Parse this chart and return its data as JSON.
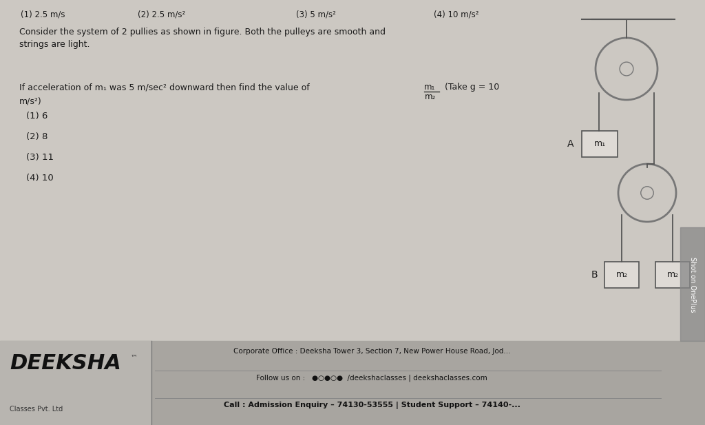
{
  "bg_color": "#ccc8c2",
  "text_color": "#1a1a1a",
  "problem_text_line1": "Consider the system of 2 pullies as shown in figure. Both the pulleys are smooth and",
  "problem_text_line2": "strings are light.",
  "question_text": "If acceleration of m₁ was 5 m/sec² downward then find the value of",
  "frac_num": "m₁",
  "frac_den": "m₂",
  "take_g_text": "(Take g = 10",
  "unit_text": "m/s²)",
  "options": [
    "(1) 6",
    "(2) 8",
    "(3) 11",
    "(4) 10"
  ],
  "label_A": "A",
  "label_B": "B",
  "label_m1": "m₁",
  "label_m2": "m₂",
  "label_m3": "m₂",
  "pulley_color": "#777777",
  "string_color": "#555555",
  "box_edge_color": "#555555",
  "box_face_color": "#dedad5",
  "footer_bg": "#a8a5a0",
  "footer_left_bg": "#b8b5b0",
  "footer_office": "Corporate Office : Deeksha Tower 3, Section 7, New Power House Road, Jod...",
  "footer_follow": "Follow us on :   ●○●○●  /deekshaclasses | deekshaclasses.com",
  "footer_call": "Call : Admission Enquiry – 74130-53555 | Student Support – 74140-...",
  "deeksha_text": "DEEKSHA",
  "deeksha_sub": "Classes Pvt. Ltd",
  "oneplus_text": "Shot on OnePlus"
}
